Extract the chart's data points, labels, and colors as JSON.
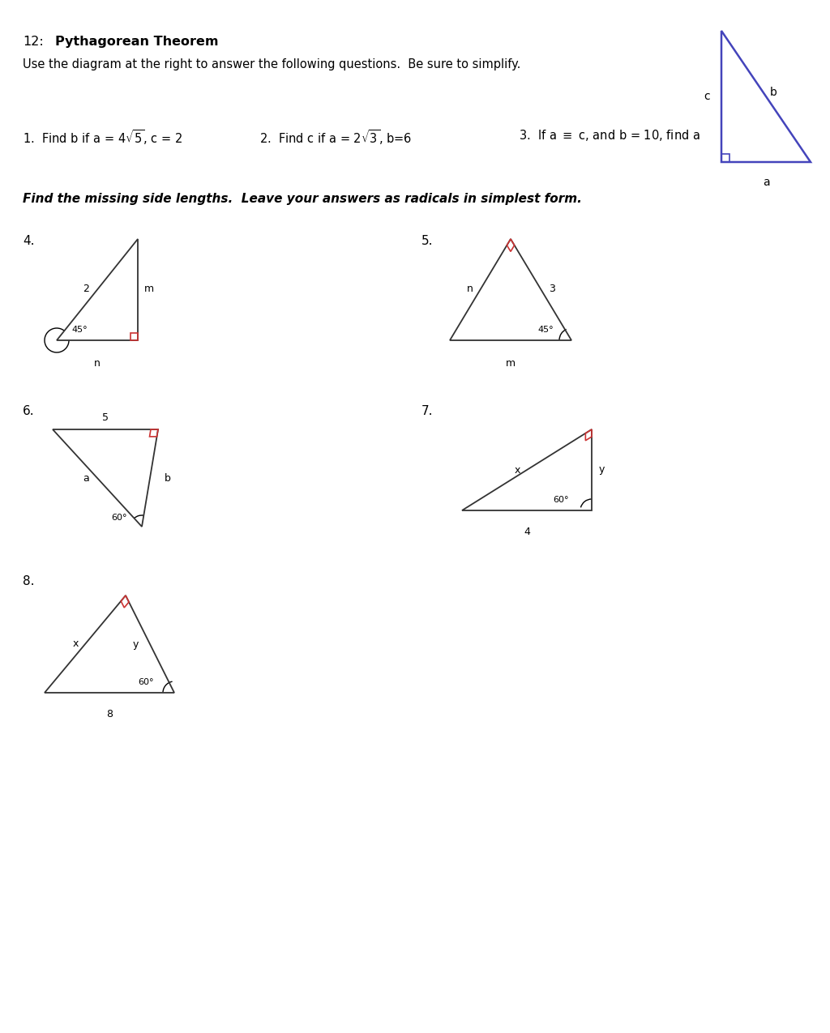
{
  "bg_color": "#ffffff",
  "triangle_color": "#333333",
  "right_angle_color": "#cc3333",
  "header_triangle_color": "#4444bb",
  "title_num": "12:",
  "title_text": "Pythagorean Theorem",
  "subtitle": "Use the diagram at the right to answer the following questions.  Be sure to simplify.",
  "bold_instruction": "Find the missing side lengths.  Leave your answers as radicals in simplest form."
}
